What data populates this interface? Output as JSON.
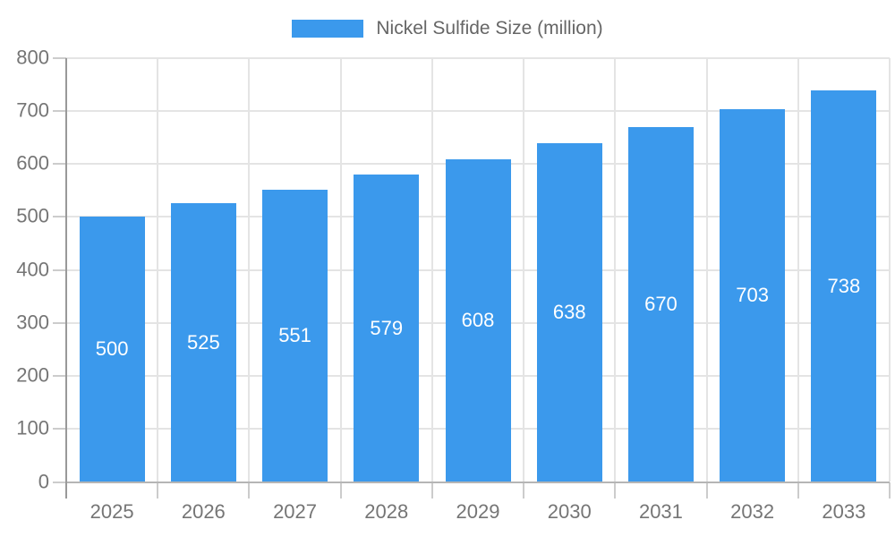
{
  "chart_data": {
    "type": "bar",
    "title": "",
    "legend": "Nickel Sulfide Size (million)",
    "legend_position": "top",
    "series_name": "Nickel Sulfide Size (million)",
    "categories": [
      "2025",
      "2026",
      "2027",
      "2028",
      "2029",
      "2030",
      "2031",
      "2032",
      "2033"
    ],
    "values": [
      500,
      525,
      551,
      579,
      608,
      638,
      670,
      703,
      738
    ],
    "value_labels_inside_bars": true,
    "xlabel": "",
    "ylabel": "",
    "ylim": [
      0,
      800
    ],
    "yticks": [
      0,
      100,
      200,
      300,
      400,
      500,
      600,
      700,
      800
    ],
    "grid": true
  },
  "colors": {
    "bar": "#3b99ec",
    "bar_value_text": "#ffffff",
    "axis_line": "#999999",
    "baseline": "#b5b5b5",
    "tick": "#cccccc",
    "gridline": "#e4e4e4",
    "axis_text": "#757575",
    "legend_text": "#666666",
    "background": "#ffffff"
  }
}
